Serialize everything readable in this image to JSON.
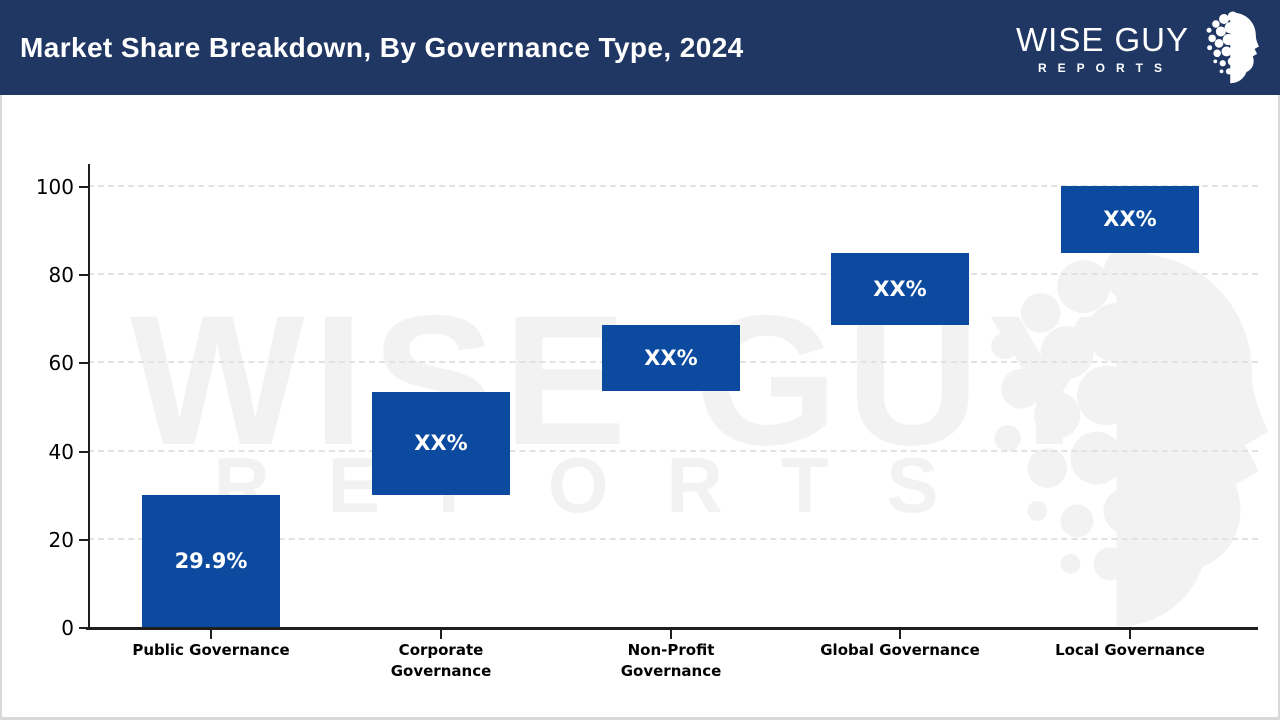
{
  "header": {
    "title": "Market Share Breakdown, By Governance Type, 2024",
    "logo": {
      "line1": "WISE GUY",
      "line2": "REPORTS"
    }
  },
  "watermark": {
    "line1": "WISE GUY",
    "line2": "REPORTS"
  },
  "colors": {
    "header_bg": "#203764",
    "header_text": "#ffffff",
    "bar_blue": "#0b4a9e",
    "bar_label_text": "#ffffff",
    "axis": "#1f1f1f",
    "gridline": "#e2e2e2",
    "watermark_gray": "#f2f2f2",
    "frame_border": "#d9d9d9"
  },
  "chart_data": {
    "type": "bar",
    "variant": "waterfall",
    "title": "Market Share Breakdown, By Governance Type, 2024",
    "xlabel": "",
    "ylabel": "",
    "categories": [
      "Public Governance",
      "Corporate Governance",
      "Non-Profit Governance",
      "Global Governance",
      "Local Governance"
    ],
    "category_label_lines": [
      [
        "Public Governance"
      ],
      [
        "Corporate",
        "Governance"
      ],
      [
        "Non-Profit",
        "Governance"
      ],
      [
        "Global Governance"
      ],
      [
        "Local Governance"
      ]
    ],
    "bars": [
      {
        "category": "Public Governance",
        "label": "29.9%",
        "start": 0,
        "end": 29.9
      },
      {
        "category": "Corporate Governance",
        "label": "XX%",
        "start": 29.9,
        "end": 53.4
      },
      {
        "category": "Non-Profit Governance",
        "label": "XX%",
        "start": 53.4,
        "end": 68.4
      },
      {
        "category": "Global Governance",
        "label": "XX%",
        "start": 68.4,
        "end": 84.9
      },
      {
        "category": "Local Governance",
        "label": "XX%",
        "start": 84.9,
        "end": 100
      }
    ],
    "yticks": [
      0,
      20,
      40,
      60,
      80,
      100
    ],
    "ylim": [
      0,
      105
    ],
    "grid": {
      "horizontal": true,
      "style": "dashed"
    },
    "legend": null
  }
}
